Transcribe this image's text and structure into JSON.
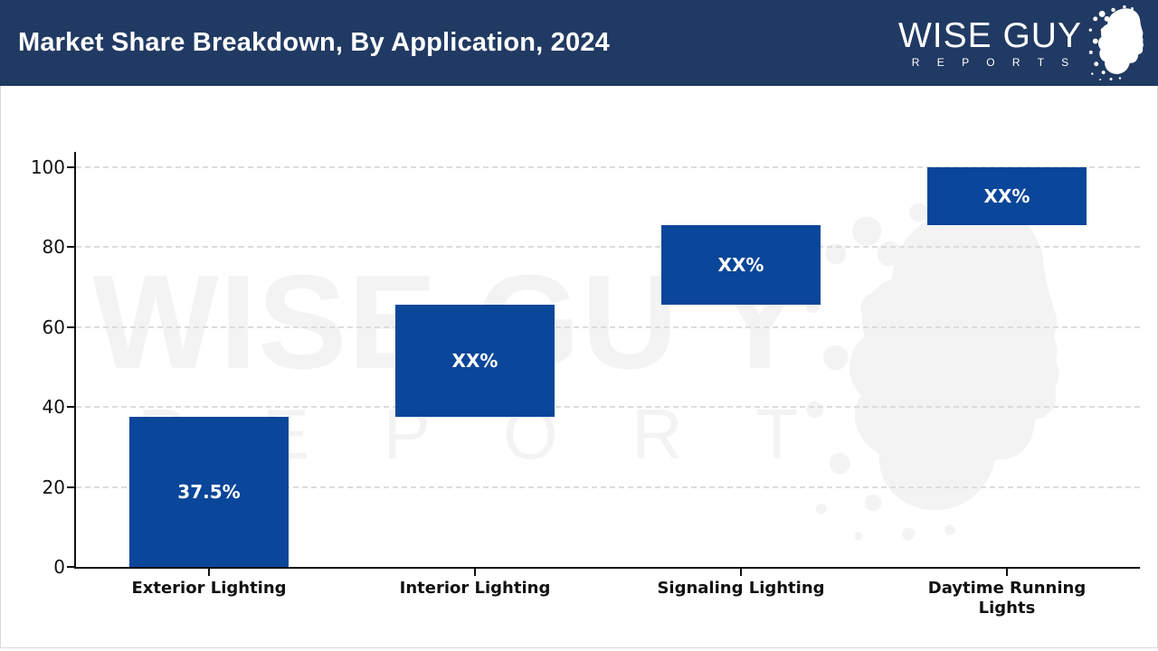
{
  "header": {
    "title": "Market Share Breakdown, By Application, 2024",
    "logo": {
      "line1": "WISE GUY",
      "line2": "R E P O R T S"
    }
  },
  "watermark": {
    "part1": "WISE GU",
    "part2": "Y",
    "line2": "R E P O R T S"
  },
  "colors": {
    "header_bg": "#213A63",
    "title_text": "#FFFFFF",
    "bar": "#0A4699",
    "bar_label": "#FFFFFF",
    "grid": "#DCDCDC",
    "axis": "#111111",
    "watermark": "#F3F3F3",
    "frame_rule": "#D9D9D9"
  },
  "chart_data": {
    "type": "bar",
    "subtype": "waterfall",
    "title": "Market Share Breakdown, By Application, 2024",
    "categories": [
      "Exterior Lighting",
      "Interior Lighting",
      "Signaling Lighting",
      "Daytime Running Lights"
    ],
    "series": [
      {
        "name": "Market Share",
        "segments": [
          {
            "category": "Exterior Lighting",
            "start": 0,
            "end": 37.5,
            "label": "37.5%"
          },
          {
            "category": "Interior Lighting",
            "start": 37.5,
            "end": 65.5,
            "label": "XX%"
          },
          {
            "category": "Signaling Lighting",
            "start": 65.5,
            "end": 85.5,
            "label": "XX%"
          },
          {
            "category": "Daytime Running Lights",
            "start": 85.5,
            "end": 100,
            "label": "XX%"
          }
        ]
      }
    ],
    "ylim": [
      0,
      100
    ],
    "yticks": [
      0,
      20,
      40,
      60,
      80,
      100
    ],
    "xlabel": "",
    "ylabel": "",
    "grid": "horizontal-dashed",
    "legend": "none"
  }
}
